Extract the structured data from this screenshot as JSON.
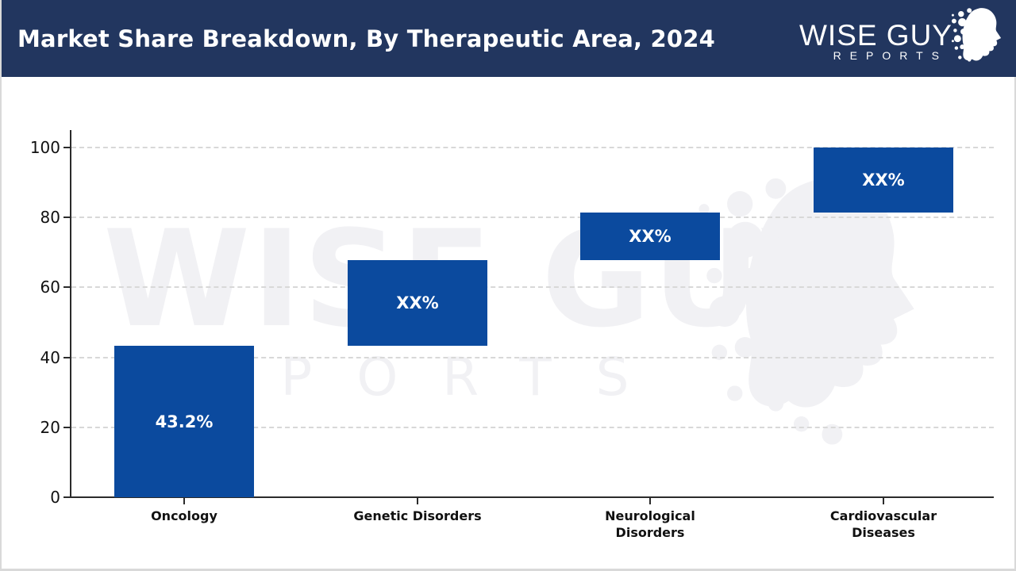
{
  "header": {
    "title": "Market Share Breakdown, By Therapeutic Area, 2024",
    "logo": {
      "line1": "WISE GUY",
      "line2": "REPORTS"
    }
  },
  "watermark": {
    "line1": "WISE GUY",
    "line2": "REPORTS"
  },
  "colors": {
    "header_bg": "#22365f",
    "bar_fill": "#0b4a9e",
    "bar_label_text": "#ffffff",
    "watermark": "#f1f1f4",
    "gridline": "#d8d8d8",
    "axis": "#2b2b2b",
    "page_border": "#d9d9d9"
  },
  "chart_data": {
    "type": "bar",
    "subtype": "waterfall",
    "title": "Market Share Breakdown, By Therapeutic Area, 2024",
    "categories": [
      "Oncology",
      "Genetic Disorders",
      "Neurological Disorders",
      "Cardiovascular Diseases"
    ],
    "category_label_lines": [
      [
        "Oncology"
      ],
      [
        "Genetic Disorders"
      ],
      [
        "Neurological",
        "Disorders"
      ],
      [
        "Cardiovascular",
        "Diseases"
      ]
    ],
    "segments": [
      {
        "category": "Oncology",
        "start": 0,
        "end": 43.2,
        "label": "43.2%"
      },
      {
        "category": "Genetic Disorders",
        "start": 43.2,
        "end": 67.8,
        "label": "XX%"
      },
      {
        "category": "Neurological Disorders",
        "start": 67.8,
        "end": 81.5,
        "label": "XX%"
      },
      {
        "category": "Cardiovascular Diseases",
        "start": 81.5,
        "end": 100,
        "label": "XX%"
      }
    ],
    "yticks": [
      0,
      20,
      40,
      60,
      80,
      100
    ],
    "ylim": [
      0,
      105
    ],
    "xlabel": "",
    "ylabel": "",
    "grid": "horizontal-dashed",
    "legend": null
  }
}
